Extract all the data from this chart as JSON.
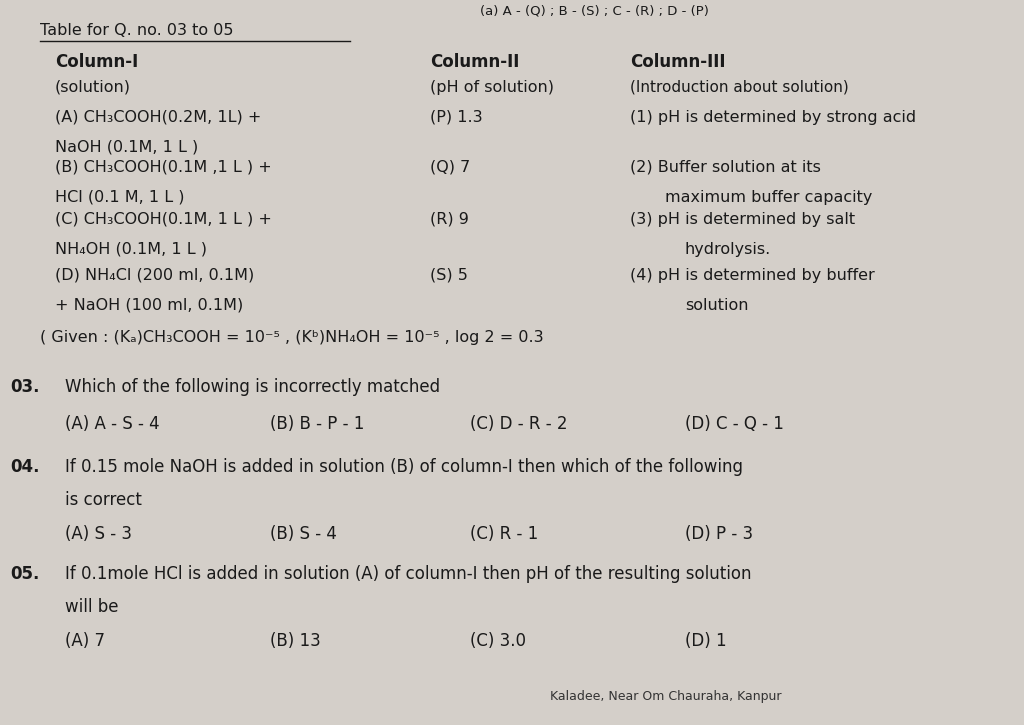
{
  "bg_color": "#d4cfc9",
  "text_color": "#1a1a1a",
  "title_top": "Table for Q. no. 03 to 05",
  "top_strip": "(a) A - (Q) ; B - (S) ; C - (R) ; D - (P)",
  "col1_header": "Column-I",
  "col1_sub": "(solution)",
  "col2_header": "Column-II",
  "col2_sub": "(pH of solution)",
  "col3_header": "Column-III",
  "col3_sub": "(Introduction about solution)",
  "rowA_col1_line1": "(A) CH₃COOH(0.2M, 1L) +",
  "rowA_col1_line2": "NaOH (0.1M, 1 L )",
  "rowA_col2": "(P) 1.3",
  "rowA_col3": "(1) pH is determined by strong acid",
  "rowB_col1_line1": "(B) CH₃COOH(0.1M ,1 L ) +",
  "rowB_col1_line2": "HCl (0.1 M, 1 L )",
  "rowB_col2": "(Q) 7",
  "rowB_col3_line1": "(2) Buffer solution at its",
  "rowB_col3_line2": "maximum buffer capacity",
  "rowC_col1_line1": "(C) CH₃COOH(0.1M, 1 L ) +",
  "rowC_col1_line2": "NH₄OH (0.1M, 1 L )",
  "rowC_col2": "(R) 9",
  "rowC_col3_line1": "(3) pH is determined by salt",
  "rowC_col3_line2": "hydrolysis.",
  "rowD_col1_line1": "(D) NH₄Cl (200 ml, 0.1M)",
  "rowD_col1_line2": "+ NaOH (100 ml, 0.1M)",
  "rowD_col2": "(S) 5",
  "rowD_col3_line1": "(4) pH is determined by buffer",
  "rowD_col3_line2": "solution",
  "given_line": "( Given : (Kₐ)CH₃COOH = 10⁻⁵ , (Kᵇ)NH₄OH = 10⁻⁵ , log 2 = 0.3",
  "q03_num": "03.",
  "q03_text": "Which of the following is incorrectly matched",
  "q03_A": "(A) A - S - 4",
  "q03_B": "(B) B - P - 1",
  "q03_C": "(C) D - R - 2",
  "q03_D": "(D) C - Q - 1",
  "q04_num": "04.",
  "q04_line1": "If 0.15 mole NaOH is added in solution (B) of column-I then which of the following",
  "q04_line2": "is correct",
  "q04_A": "(A) S - 3",
  "q04_B": "(B) S - 4",
  "q04_C": "(C) R - 1",
  "q04_D": "(D) P - 3",
  "q05_num": "05.",
  "q05_line1": "If 0.1mole HCl is added in solution (A) of column-I then pH of the resulting solution",
  "q05_line2": "will be",
  "q05_A": "(A) 7",
  "q05_B": "(B) 13",
  "q05_C": "(C) 3.0",
  "q05_D": "(D) 1",
  "footer": "Kaladee, Near Om Chauraha, Kanpur"
}
